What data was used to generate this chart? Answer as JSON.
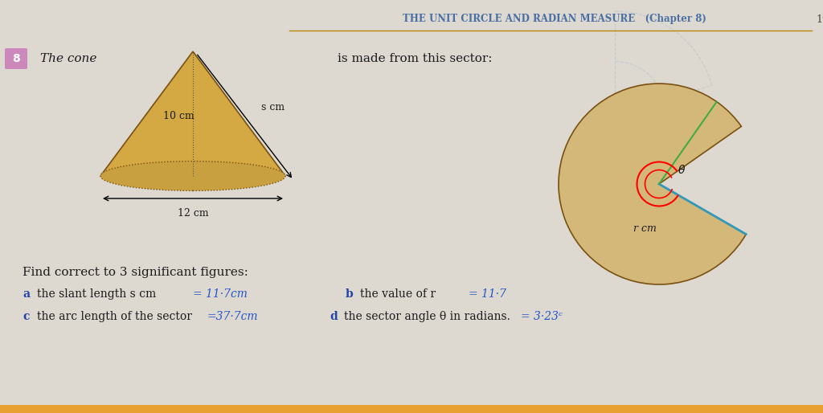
{
  "bg_color": "#ddd9d0",
  "header_text": "THE UNIT CIRCLE AND RADIAN MEASURE   (Chapter 8)",
  "header_color": "#4a6fa5",
  "question_number": "8",
  "question_number_bg": "#cc88bb",
  "question_text": "The cone",
  "is_made_text": "is made from this sector:",
  "cone_color": "#d4a843",
  "cone_color_dark": "#c49030",
  "cone_base_color": "#c8a040",
  "cone_height_label": "10 cm",
  "cone_slant_label": "s cm",
  "cone_base_label": "12 cm",
  "sector_color": "#d4b87a",
  "sector_outline": "#7a5010",
  "find_text": "Find correct to 3 significant figures:",
  "part_a_label": "a",
  "part_a_text": "the slant length s cm",
  "part_a_answer": "= 11·7cm",
  "part_b_label": "b",
  "part_b_text": "the value of r",
  "part_b_answer": "= 11·7",
  "part_c_label": "c",
  "part_c_text": "the arc length of the sector",
  "part_c_answer": "=37·7cm",
  "part_d_label": "d",
  "part_d_text": "the sector angle θ in radians.",
  "part_d_answer": "= 3·23ᶜ",
  "answer_color": "#2255cc",
  "text_color": "#1a1a1a",
  "label_color": "#2244aa",
  "header_line_color": "#b8860b",
  "bottom_strip_color": "#e8a030"
}
